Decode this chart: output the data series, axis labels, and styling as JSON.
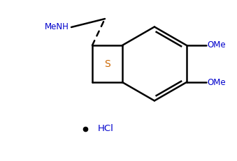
{
  "bg_color": "#ffffff",
  "line_color": "#000000",
  "bond_width": 1.8,
  "s_label": "S",
  "ome1_label": "OMe",
  "ome2_label": "OMe",
  "menh_label": "MeNH",
  "hcl_label": "HCl",
  "text_color_blue": "#0000cc",
  "text_color_orange": "#cc6600",
  "font_size_label": 8.5,
  "font_size_hcl": 9.5
}
